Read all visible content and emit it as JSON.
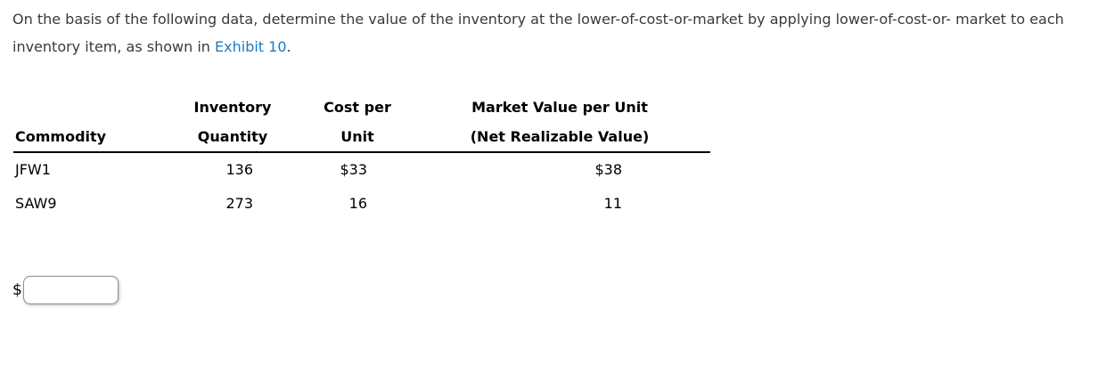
{
  "question": {
    "line1": "On the basis of the following data, determine the value of the inventory at the lower-of-cost-or-market by applying lower-of-cost-or-",
    "line2_before_link": "market to each inventory item, as shown in ",
    "link_text": "Exhibit 10",
    "line2_after_link": "."
  },
  "table": {
    "headers": {
      "commodity": "Commodity",
      "quantity_line1": "Inventory",
      "quantity_line2": "Quantity",
      "cost_line1": "Cost per",
      "cost_line2": "Unit",
      "market_line1": "Market Value per Unit",
      "market_line2": "(Net Realizable Value)"
    },
    "rows": [
      {
        "commodity": "JFW1",
        "quantity": "136",
        "cost": "$33",
        "market": "$38"
      },
      {
        "commodity": "SAW9",
        "quantity": "273",
        "cost": "16",
        "market": "11"
      }
    ]
  },
  "answer": {
    "currency_symbol": "$",
    "input_value": ""
  },
  "colors": {
    "link": "#1b7ac1",
    "body_text": "#3a3a3a",
    "table_text": "#000000"
  }
}
